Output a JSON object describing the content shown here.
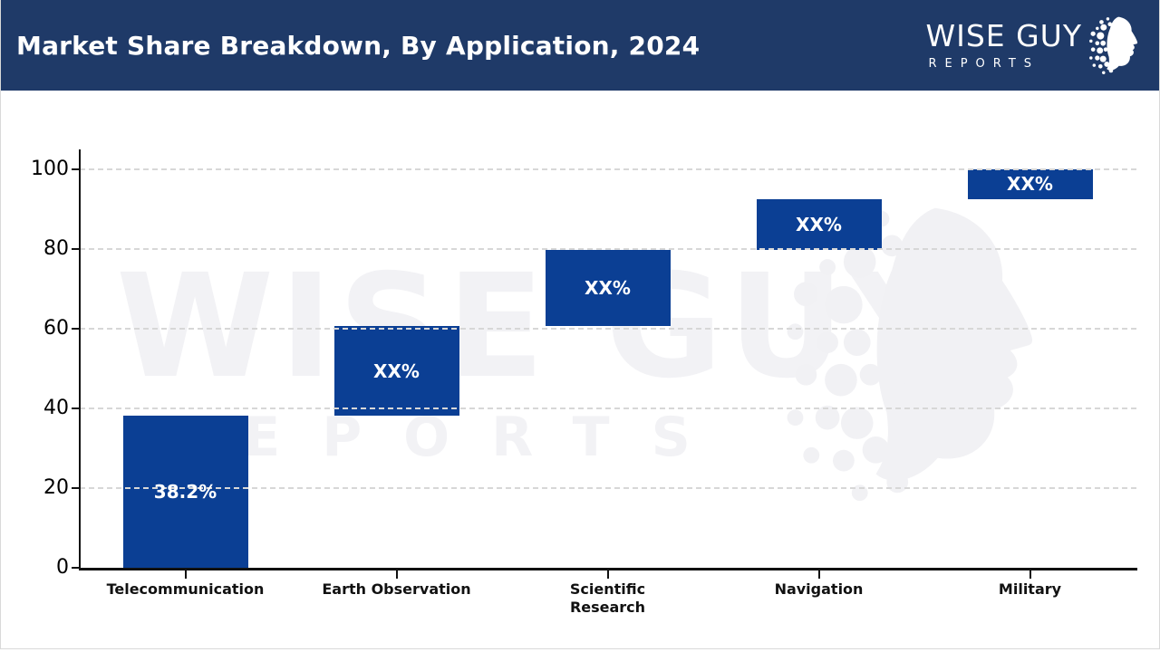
{
  "header": {
    "title": "Market Share Breakdown, By Application, 2024",
    "logo": {
      "line1": "WISE GUY",
      "line2": "REPORTS"
    },
    "background_color": "#1f3a68"
  },
  "watermark": {
    "line1": "WISE GUY",
    "line2": "REPORTS"
  },
  "chart_data": {
    "type": "bar",
    "subtype": "waterfall",
    "title": "Market Share Breakdown, By Application, 2024",
    "categories": [
      "Telecommunication",
      "Earth Observation",
      "Scientific Research",
      "Navigation",
      "Military"
    ],
    "x_tick_labels": [
      "Telecommunication",
      "Earth Observation",
      "Scientific\nResearch",
      "Navigation",
      "Military"
    ],
    "segments": [
      {
        "category": "Telecommunication",
        "start": 0,
        "end": 38.2,
        "label": "38.2%"
      },
      {
        "category": "Earth Observation",
        "start": 38.2,
        "end": 60.6,
        "label": "XX%"
      },
      {
        "category": "Scientific Research",
        "start": 60.6,
        "end": 79.8,
        "label": "XX%"
      },
      {
        "category": "Navigation",
        "start": 79.8,
        "end": 92.6,
        "label": "XX%"
      },
      {
        "category": "Military",
        "start": 92.6,
        "end": 100,
        "label": "XX%"
      }
    ],
    "values_masked_as": "XX%",
    "y_ticks": [
      0,
      20,
      40,
      60,
      80,
      100
    ],
    "ylim": [
      0,
      105
    ],
    "xlabel": "",
    "ylabel": "",
    "bar_color": "#0b3f94",
    "grid": "horizontal-dashed",
    "legend": "none"
  }
}
